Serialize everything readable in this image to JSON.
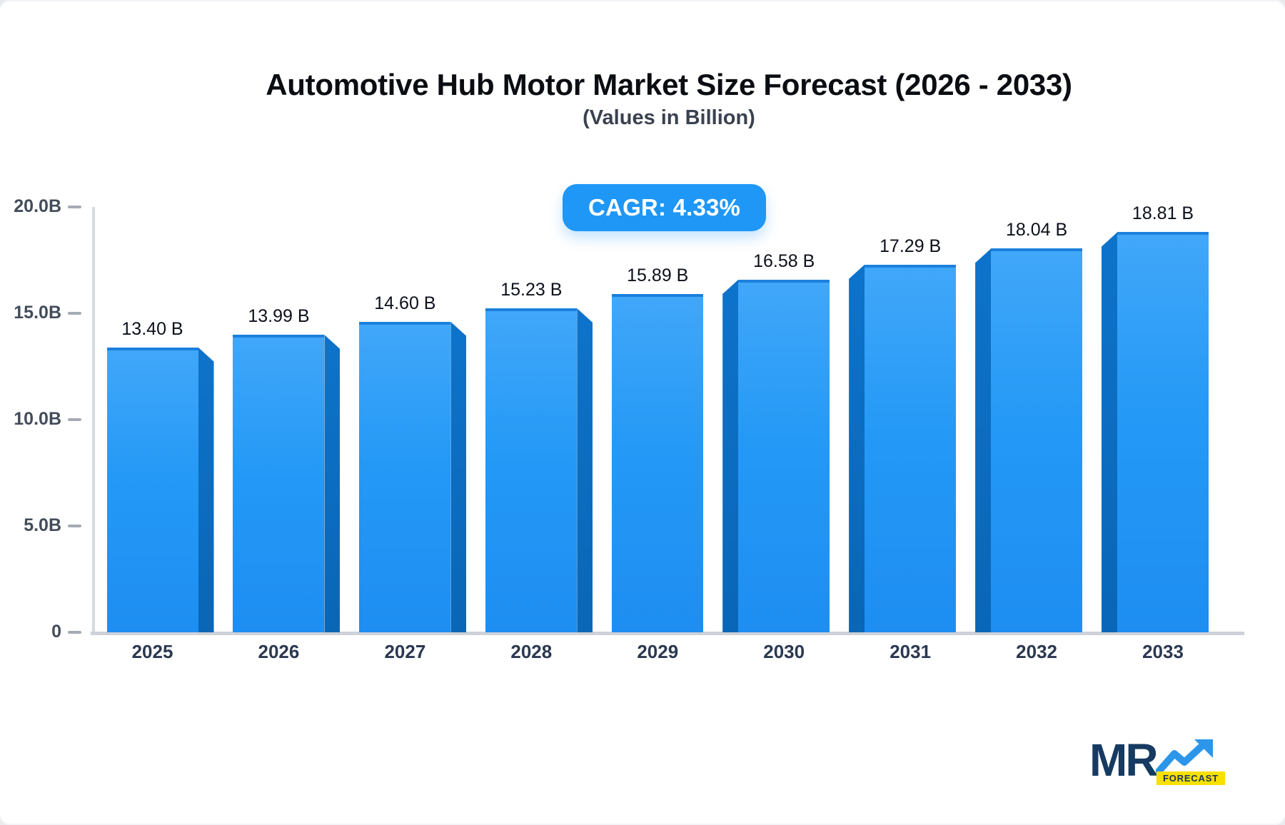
{
  "header": {
    "title": "Automotive Hub Motor Market Size Forecast (2026 - 2033)",
    "subtitle": "(Values in Billion)",
    "cagr_label": "CAGR: 4.33%"
  },
  "chart_data": {
    "type": "bar",
    "title": "Automotive Hub Motor Market Size Forecast (2026 - 2033)",
    "subtitle": "(Values in Billion)",
    "annotation": "CAGR: 4.33%",
    "categories": [
      "2025",
      "2026",
      "2027",
      "2028",
      "2029",
      "2030",
      "2031",
      "2032",
      "2033"
    ],
    "values": [
      13.4,
      13.99,
      14.6,
      15.23,
      15.89,
      16.58,
      17.29,
      18.04,
      18.81
    ],
    "value_labels": [
      "13.40 B",
      "13.99 B",
      "14.60 B",
      "15.23 B",
      "15.89 B",
      "16.58 B",
      "17.29 B",
      "18.04 B",
      "18.81 B"
    ],
    "xlabel": "",
    "ylabel": "",
    "ylim": [
      0,
      20
    ],
    "y_ticks": [
      {
        "label": "0",
        "value": 0
      },
      {
        "label": "5.0B",
        "value": 5
      },
      {
        "label": "10.0B",
        "value": 10
      },
      {
        "label": "15.0B",
        "value": 15
      },
      {
        "label": "20.0B",
        "value": 20
      }
    ],
    "grid": false,
    "legend": "none",
    "bar_style": "3d-perspective-center",
    "colors": {
      "bar_face_top": "#41a7f9",
      "bar_face_bottom": "#1e8ef2",
      "bar_top_edge": "#1b80dd",
      "bar_side": "#0a66b6",
      "badge_background": "#1f97f6",
      "badge_text": "#ffffff",
      "axis_line": "#cdd1d8",
      "tick_text": "#434c5a",
      "value_text": "#0c101b"
    }
  },
  "logo": {
    "mr_text": "MR",
    "forecast_text": "FORECAST",
    "mr_color": "#163a61",
    "arrow_color": "#2b96ea",
    "badge_color": "#f8e000"
  }
}
